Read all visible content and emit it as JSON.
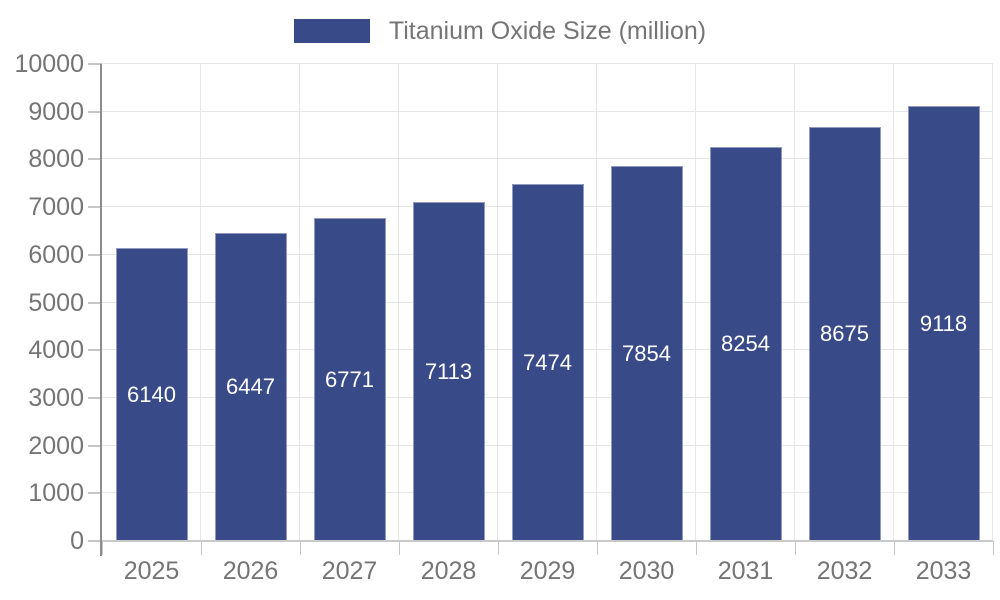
{
  "chart_data": {
    "type": "bar",
    "legend": "Titanium Oxide Size (million)",
    "legend_position": "top-center",
    "categories": [
      "2025",
      "2026",
      "2027",
      "2028",
      "2029",
      "2030",
      "2031",
      "2032",
      "2033"
    ],
    "values": [
      6140,
      6447,
      6771,
      7113,
      7474,
      7854,
      8254,
      8675,
      9118
    ],
    "xlabel": "",
    "ylabel": "",
    "ylim": [
      0,
      10000
    ],
    "yticks": [
      0,
      1000,
      2000,
      3000,
      4000,
      5000,
      6000,
      7000,
      8000,
      9000,
      10000
    ],
    "grid": "horizontal and vertical, light gray, behind bars",
    "value_labels": "white, centered inside bars",
    "colors": {
      "bar": "#394A88",
      "bar_edge": "rgba(255,255,255,0.45)",
      "value_text": "#ffffff",
      "axis_text": "#757575",
      "gridline": "#e7e7e7",
      "y_axis_line": "#8c8c8c",
      "x_axis_line": "#c9c9c9",
      "tick": "#c6c6c6",
      "background": "#ffffff"
    }
  }
}
